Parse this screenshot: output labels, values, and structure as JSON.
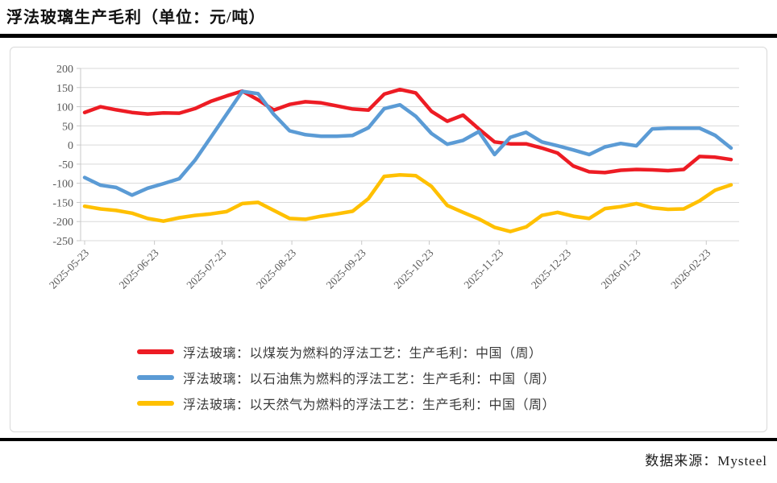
{
  "source_note": "数据来源：Mysteel",
  "style": {
    "grid_color": "#d9d9d9",
    "axis_color": "#c8c8c8",
    "tick_text_color": "#595959",
    "divider_color": "#000000",
    "chart_border_color": "#d9d9d9"
  },
  "chart_data": {
    "type": "line",
    "title": "浮法玻璃生产毛利（单位：元/吨）",
    "ylabel": "",
    "xlabel": "",
    "ylim": [
      -250,
      200
    ],
    "yticks": [
      200,
      150,
      100,
      50,
      0,
      -50,
      -100,
      -150,
      -200,
      -250
    ],
    "grid": "horizontal",
    "legend_position": "bottom",
    "xtick_labels": [
      "2025-05-23",
      "2025-06-23",
      "2025-07-23",
      "2025-08-23",
      "2025-09-23",
      "2025-10-23",
      "2025-11-23",
      "2025-12-23",
      "2026-01-23",
      "2026-02-23"
    ],
    "x": [
      "2025-05-23",
      "2025-05-30",
      "2025-06-06",
      "2025-06-13",
      "2025-06-20",
      "2025-06-27",
      "2025-07-04",
      "2025-07-11",
      "2025-07-18",
      "2025-07-25",
      "2025-08-01",
      "2025-08-08",
      "2025-08-15",
      "2025-08-22",
      "2025-08-29",
      "2025-09-05",
      "2025-09-12",
      "2025-09-19",
      "2025-09-26",
      "2025-10-03",
      "2025-10-10",
      "2025-10-17",
      "2025-10-24",
      "2025-10-31",
      "2025-11-07",
      "2025-11-14",
      "2025-11-21",
      "2025-11-28",
      "2025-12-05",
      "2025-12-12",
      "2025-12-19",
      "2025-12-26",
      "2026-01-02",
      "2026-01-09",
      "2026-01-16",
      "2026-01-23",
      "2026-01-30",
      "2026-02-06",
      "2026-02-13",
      "2026-02-20",
      "2026-02-27",
      "2026-03-06"
    ],
    "series": [
      {
        "name": "浮法玻璃：以煤炭为燃料的浮法工艺：生产毛利：中国（周）",
        "color": "#ed1c24",
        "values": [
          85,
          100,
          92,
          85,
          81,
          84,
          83,
          95,
          114,
          128,
          141,
          118,
          91,
          106,
          113,
          110,
          102,
          94,
          91,
          133,
          145,
          136,
          88,
          62,
          78,
          42,
          8,
          3,
          3,
          -8,
          -21,
          -55,
          -70,
          -72,
          -66,
          -64,
          -65,
          -67,
          -64,
          -30,
          -32,
          -38
        ]
      },
      {
        "name": "浮法玻璃：以石油焦为燃料的浮法工艺：生产毛利：中国（周）",
        "color": "#5b9bd5",
        "values": [
          -85,
          -105,
          -111,
          -131,
          -113,
          -101,
          -88,
          -40,
          20,
          80,
          140,
          134,
          80,
          37,
          27,
          23,
          23,
          25,
          45,
          95,
          105,
          75,
          30,
          2,
          12,
          35,
          -25,
          20,
          33,
          8,
          -2,
          -13,
          -25,
          -5,
          4,
          -2,
          42,
          44,
          44,
          44,
          25,
          -8
        ]
      },
      {
        "name": "浮法玻璃：以天然气为燃料的浮法工艺：生产毛利：中国（周）",
        "color": "#ffc000",
        "values": [
          -160,
          -167,
          -171,
          -178,
          -192,
          -199,
          -190,
          -184,
          -180,
          -174,
          -153,
          -150,
          -171,
          -192,
          -194,
          -186,
          -180,
          -173,
          -140,
          -82,
          -78,
          -80,
          -108,
          -158,
          -176,
          -193,
          -215,
          -226,
          -214,
          -184,
          -176,
          -186,
          -192,
          -166,
          -161,
          -153,
          -164,
          -168,
          -167,
          -146,
          -118,
          -104
        ]
      }
    ]
  }
}
